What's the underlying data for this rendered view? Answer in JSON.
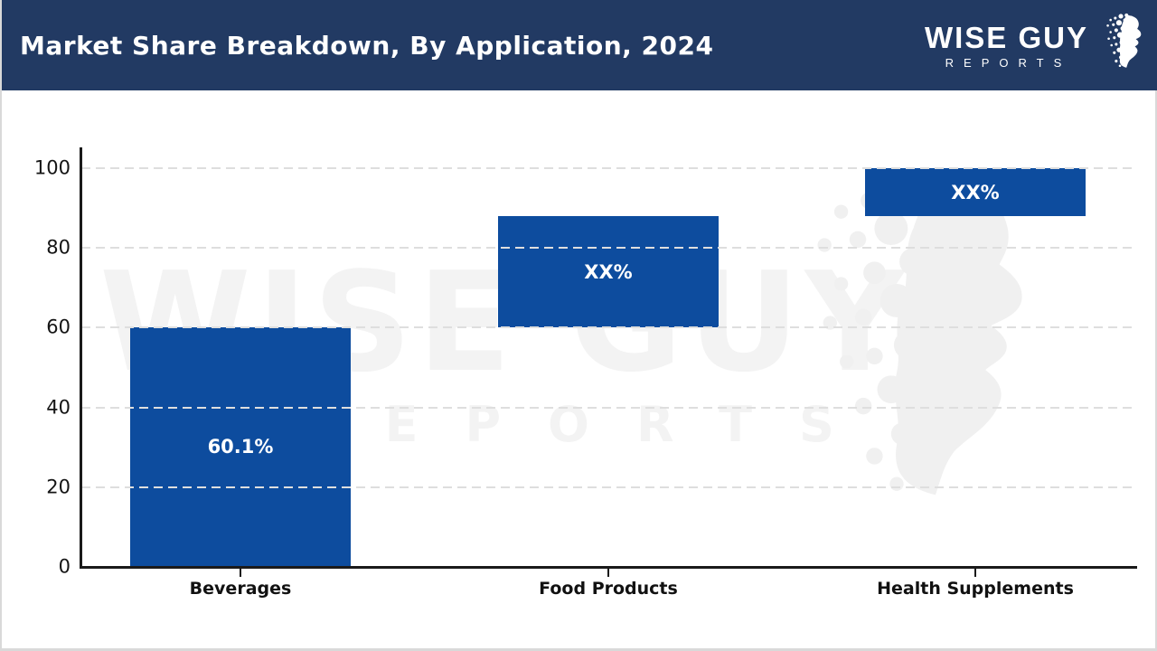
{
  "header": {
    "title": "Market Share Breakdown, By Application, 2024"
  },
  "logo": {
    "wordmark": "WISE GUY",
    "reports": "REPORTS",
    "face_icon": "dotted-head-profile"
  },
  "watermark": {
    "line1": "WISE GUY",
    "line2": "REPORTS",
    "face_icon": "dotted-head-profile"
  },
  "chart_data": {
    "type": "bar",
    "subtype": "waterfall",
    "title": "Market Share Breakdown, By Application, 2024",
    "xlabel": "",
    "ylabel": "",
    "categories": [
      "Beverages",
      "Food Products",
      "Health Supplements"
    ],
    "segments": [
      {
        "category": "Beverages",
        "start": 0,
        "end": 60.1,
        "label": "60.1%"
      },
      {
        "category": "Food Products",
        "start": 60.1,
        "end": 87.9,
        "label": "XX%"
      },
      {
        "category": "Health Supplements",
        "start": 87.9,
        "end": 100,
        "label": "XX%"
      }
    ],
    "ylim": [
      0,
      100
    ],
    "yticks": [
      0,
      20,
      40,
      60,
      80,
      100
    ],
    "grid": "horizontal-dashed",
    "grid_on_top_of_bars": true,
    "legend": "none",
    "bar_color": "#0D4C9E",
    "bar_label_color": "#FFFFFF"
  },
  "colors": {
    "header_bg": "#223A63",
    "bar": "#0D4C9E",
    "grid": "#DEDEDE",
    "axis": "#1A1A1A",
    "watermark": "#F3F3F3",
    "page_border": "#D9D9D9"
  }
}
